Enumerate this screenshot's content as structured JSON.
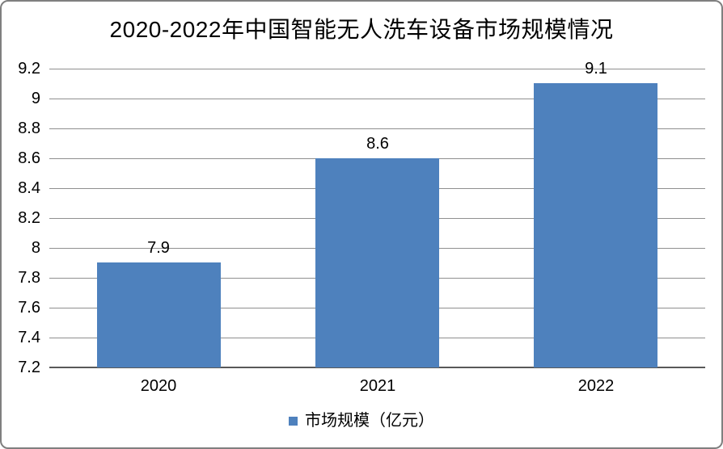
{
  "title": "2020-2022年中国智能无人洗车设备市场规模情况",
  "chart_data": {
    "type": "bar",
    "title": "2020-2022年中国智能无人洗车设备市场规模情况",
    "categories": [
      "2020",
      "2021",
      "2022"
    ],
    "series": [
      {
        "name": "市场规模（亿元）",
        "values": [
          7.9,
          8.6,
          9.1
        ]
      }
    ],
    "data_labels": [
      "7.9",
      "8.6",
      "9.1"
    ],
    "xlabel": "",
    "ylabel": "",
    "ylim": [
      7.2,
      9.2
    ],
    "ytick_step": 0.2,
    "ytick_labels": [
      "7.2",
      "7.4",
      "7.6",
      "7.8",
      "8",
      "8.2",
      "8.4",
      "8.6",
      "8.8",
      "9",
      "9.2"
    ],
    "grid": "horizontal",
    "legend_position": "bottom"
  },
  "legend": {
    "label": "市场规模（亿元）"
  },
  "colors": {
    "bar": "#4e81bd",
    "gridline": "#8f8f8f",
    "axis": "#595959",
    "frame_border": "#7f7f7f",
    "text": "#000000",
    "background": "#ffffff"
  }
}
